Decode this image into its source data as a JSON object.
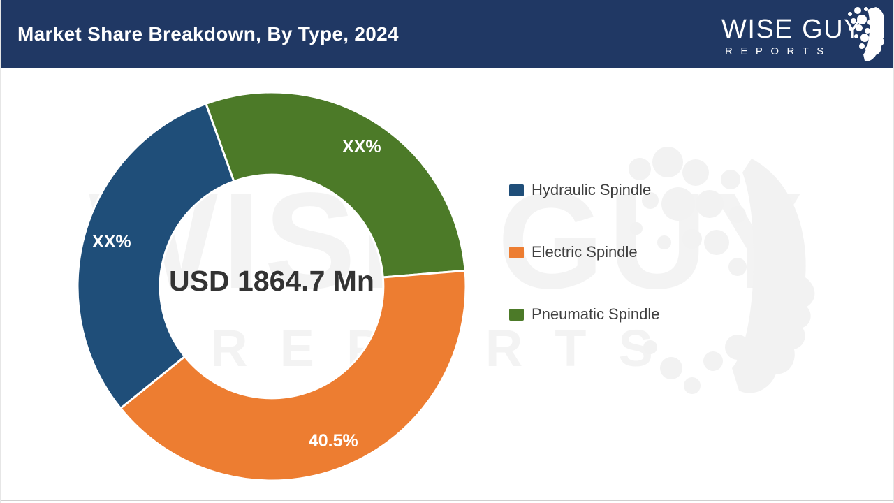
{
  "header": {
    "title": "Market Share Breakdown, By Type, 2024",
    "bg_color": "#203864",
    "logo": {
      "line1": "WISE GUY",
      "line2": "REPORTS"
    }
  },
  "chart_data": {
    "type": "pie",
    "subtype": "donut",
    "title": "Market Share Breakdown, By Type, 2024",
    "center_label": "USD 1864.7 Mn",
    "start_angle_deg": -19.8,
    "inner_radius_ratio": 0.575,
    "slices": [
      {
        "name": "Pneumatic Spindle",
        "display_label": "XX%",
        "pct": 29.2,
        "color": "#4C7A28"
      },
      {
        "name": "Electric Spindle",
        "display_label": "40.5%",
        "pct": 40.5,
        "color": "#ED7D31"
      },
      {
        "name": "Hydraulic Spindle",
        "display_label": "XX%",
        "pct": 30.3,
        "color": "#1F4E79"
      }
    ],
    "legend": [
      {
        "name": "Hydraulic Spindle",
        "color": "#1F4E79"
      },
      {
        "name": "Electric Spindle",
        "color": "#ED7D31"
      },
      {
        "name": "Pneumatic Spindle",
        "color": "#4C7A28"
      }
    ],
    "legend_position": "right"
  },
  "watermark": {
    "line1": "WISE GUY",
    "line2": "REPORTS"
  },
  "colors": {
    "header_bg": "#203864",
    "blue": "#1F4E79",
    "orange": "#ED7D31",
    "green": "#4C7A28",
    "center_text": "#333333",
    "legend_text": "#404040",
    "watermark": "#f3f3f3",
    "slice_label_text": "#ffffff"
  }
}
